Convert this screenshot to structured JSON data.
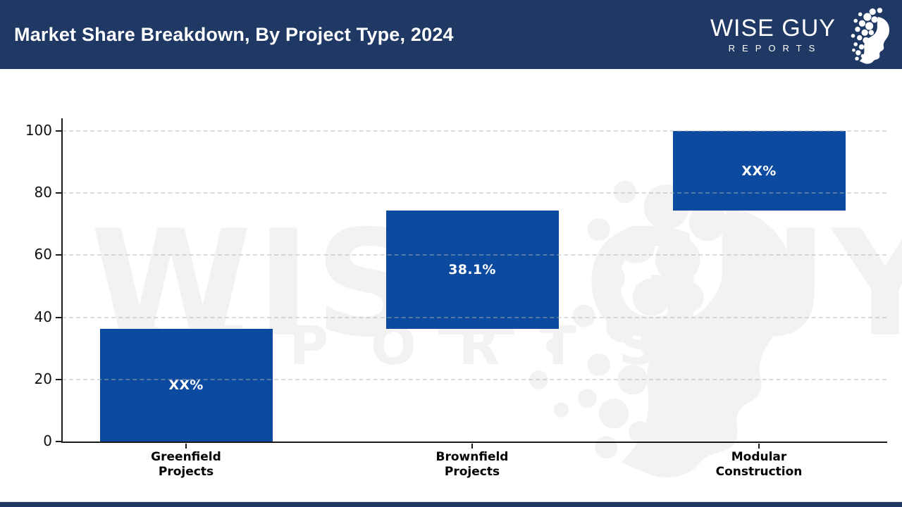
{
  "header": {
    "title": "Market Share Breakdown, By Project Type, 2024",
    "logo": {
      "name_line": "WISE GUY",
      "sub_line": "REPORTS"
    }
  },
  "watermark": {
    "name_line": "WISE GUY",
    "sub_line": "REPORTS"
  },
  "chart_data": {
    "type": "bar",
    "subtype": "floating-waterfall-segments",
    "title": "Market Share Breakdown, By Project Type, 2024",
    "categories": [
      [
        "Greenfield",
        "Projects"
      ],
      [
        "Brownfield",
        "Projects"
      ],
      [
        "Modular",
        "Construction"
      ]
    ],
    "bars": [
      {
        "category": "Greenfield Projects",
        "start": 0,
        "end": 36.2,
        "label": "XX%"
      },
      {
        "category": "Brownfield Projects",
        "start": 36.2,
        "end": 74.3,
        "label": "38.1%"
      },
      {
        "category": "Modular Construction",
        "start": 74.3,
        "end": 100,
        "label": "XX%"
      }
    ],
    "ylim": [
      0,
      100
    ],
    "yticks": [
      0,
      20,
      40,
      60,
      80,
      100
    ],
    "xlabel": "",
    "ylabel": "",
    "grid": "horizontal-dashed",
    "legend": "none",
    "bar_color": "#0b4a9f",
    "bar_label_color": "#ffffff"
  },
  "colors": {
    "header_bg": "#1f3864",
    "footer_bg": "#1f3864",
    "bar": "#0b4a9f",
    "axis": "#1a1a1a",
    "tick_label": "#111111",
    "grid": "#b0b0b0",
    "watermark": "#f2f2f2",
    "background": "#ffffff"
  }
}
